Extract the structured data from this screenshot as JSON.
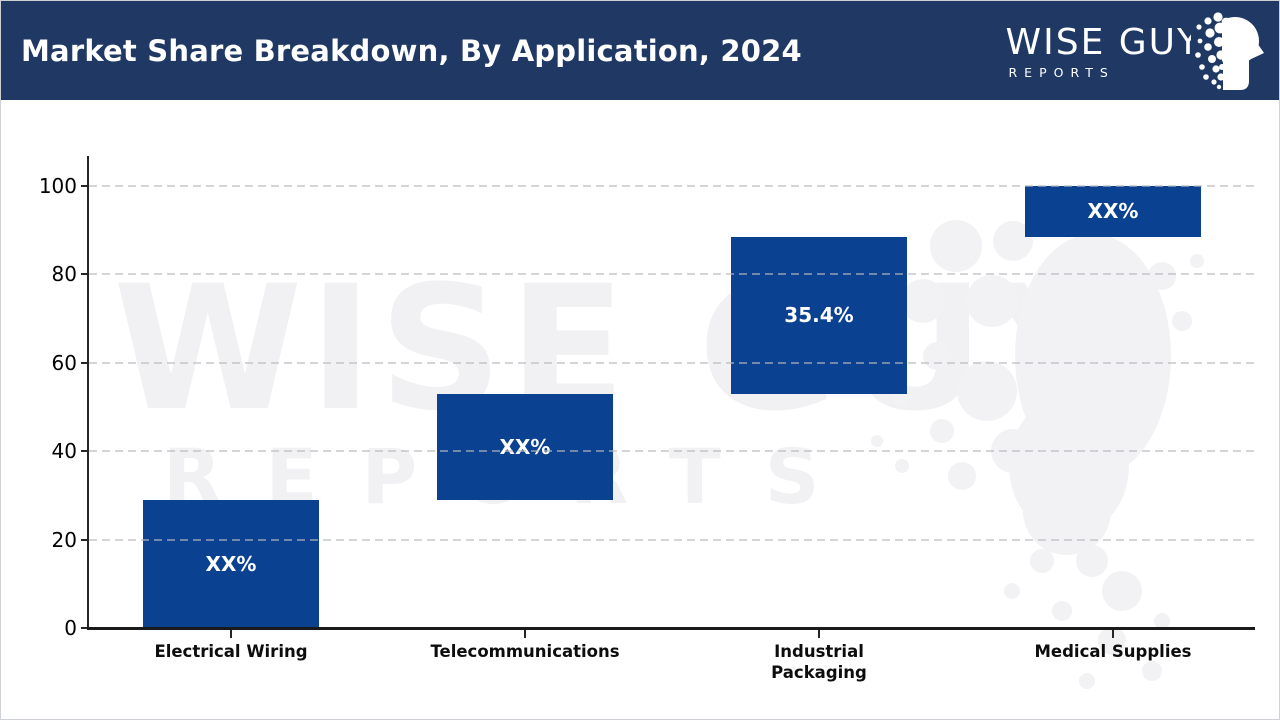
{
  "header": {
    "title": "Market Share Breakdown, By Application, 2024",
    "logo": {
      "line1": "WISE GUY",
      "line2": "REPORTS"
    }
  },
  "watermark": {
    "line1": "WISE GUY",
    "line2": "REPORTS"
  },
  "chart_data": {
    "type": "bar",
    "subtype": "waterfall-floating-bars",
    "title": "Market Share Breakdown, By Application, 2024",
    "categories": [
      "Electrical Wiring",
      "Telecommunications",
      "Industrial\nPackaging",
      "Medical Supplies"
    ],
    "bars": [
      {
        "category": "Electrical Wiring",
        "start": 0,
        "end": 29,
        "label": "XX%"
      },
      {
        "category": "Telecommunications",
        "start": 29,
        "end": 53,
        "label": "XX%"
      },
      {
        "category": "Industrial Packaging",
        "start": 53,
        "end": 88.4,
        "label": "35.4%"
      },
      {
        "category": "Medical Supplies",
        "start": 88.5,
        "end": 100,
        "label": "XX%"
      }
    ],
    "yticks": [
      0,
      20,
      40,
      60,
      80,
      100
    ],
    "ylim": [
      0,
      106.8
    ],
    "xlabel": "",
    "ylabel": "",
    "grid": "dashed-horizontal",
    "legend": "none"
  },
  "colors": {
    "header_bg": "#1f3864",
    "bar": "#0a4191",
    "bar_label": "#ffffff",
    "axis": "#262626",
    "grid": "#d9d9d9",
    "watermark": "#f1f1f3",
    "page_bg": "#ffffff"
  }
}
